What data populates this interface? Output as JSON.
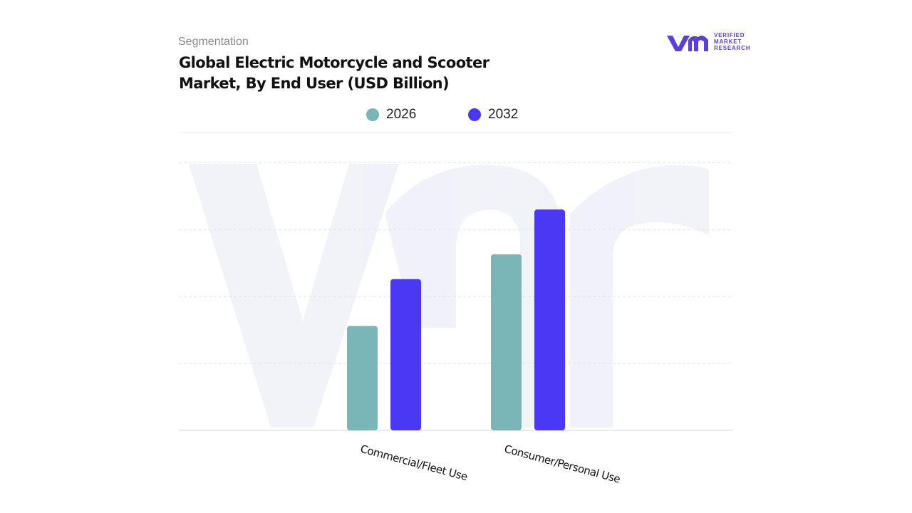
{
  "chart_data": {
    "type": "bar",
    "subtitle": "Segmentation",
    "title": "Global Electric Motorcycle and Scooter Market, By End User (USD Billion)",
    "logo": [
      "VERIFIED",
      "MARKET",
      "RESEARCH"
    ],
    "categories": [
      "Commercial/Fleet Use",
      "Consumer/Personal Use"
    ],
    "series": [
      {
        "name": "2026",
        "color": "#7ab5b8",
        "values": [
          1.56,
          2.63
        ]
      },
      {
        "name": "2032",
        "color": "#4b38f5",
        "values": [
          2.26,
          3.3
        ]
      }
    ],
    "ylim": [
      0,
      4.45
    ],
    "yticks": [
      1,
      2,
      3,
      4
    ],
    "grid": true
  }
}
